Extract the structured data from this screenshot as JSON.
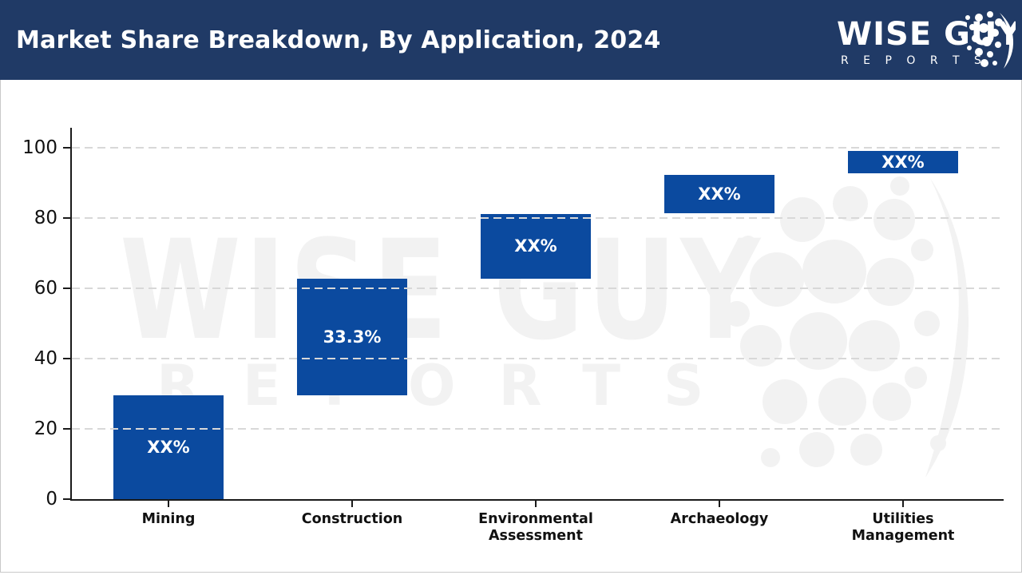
{
  "header": {
    "title": "Market Share Breakdown, By Application, 2024",
    "bg_color": "#203a66",
    "logo": {
      "line1": "WISE GUY",
      "line2": "R E P O R T S"
    }
  },
  "watermark": {
    "line1": "WISE GUY",
    "line2": "REPORTS"
  },
  "chart_data": {
    "type": "bar",
    "subtype": "waterfall",
    "title": "Market Share Breakdown, By Application, 2024",
    "categories": [
      "Mining",
      "Construction",
      "Environmental\nAssessment",
      "Archaeology",
      "Utilities\nManagement"
    ],
    "segments": [
      {
        "category": "Mining",
        "start": 0,
        "end": 29.5,
        "label": "XX%"
      },
      {
        "category": "Construction",
        "start": 29.5,
        "end": 62.8,
        "label": "33.3%"
      },
      {
        "category": "Environmental Assessment",
        "start": 62.8,
        "end": 81.2,
        "label": "XX%"
      },
      {
        "category": "Archaeology",
        "start": 81.4,
        "end": 92.2,
        "label": "XX%"
      },
      {
        "category": "Utilities Management",
        "start": 92.7,
        "end": 99.2,
        "label": "XX%"
      }
    ],
    "y_ticks": [
      0,
      20,
      40,
      60,
      80,
      100
    ],
    "ylim": [
      0,
      105.7
    ],
    "xlabel": "",
    "ylabel": "",
    "grid": "horizontal dashed, drawn above bars",
    "legend": "none",
    "bar_color": "#0b4a9f",
    "bar_label_color": "#ffffff",
    "axis_color": "#1a1a1a"
  }
}
